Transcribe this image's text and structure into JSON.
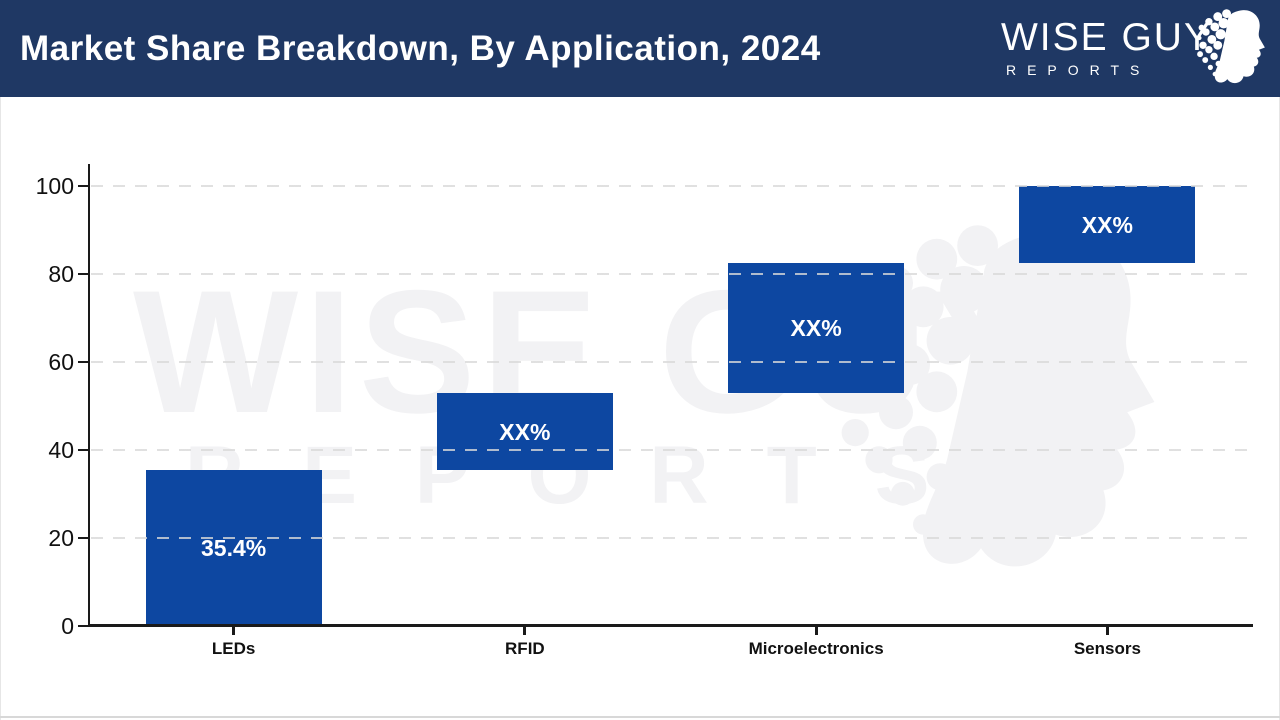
{
  "header": {
    "title": "Market Share Breakdown, By Application, 2024",
    "logo": {
      "line1": "WISE GUY",
      "line2": "REPORTS"
    }
  },
  "watermark": {
    "line1": "WISE GUY",
    "line2": "REPORTS"
  },
  "colors": {
    "header_bg": "#1F3864",
    "bar": "#0D47A1",
    "axis": "#1a1a1a",
    "grid": "#d9d9d9",
    "watermark": "#f2f2f4",
    "label_on_bar": "#ffffff"
  },
  "chart_data": {
    "type": "bar",
    "variant": "waterfall",
    "title": "Market Share Breakdown, By Application, 2024",
    "categories": [
      "LEDs",
      "RFID",
      "Microelectronics",
      "Sensors"
    ],
    "segments": [
      {
        "category": "LEDs",
        "start": 0,
        "end": 35.4,
        "label": "35.4%"
      },
      {
        "category": "RFID",
        "start": 35.4,
        "end": 53,
        "label": "XX%"
      },
      {
        "category": "Microelectronics",
        "start": 53,
        "end": 82.5,
        "label": "XX%"
      },
      {
        "category": "Sensors",
        "start": 82.5,
        "end": 100,
        "label": "XX%"
      }
    ],
    "ylim": [
      0,
      100
    ],
    "yticks": [
      0,
      20,
      40,
      60,
      80,
      100
    ],
    "xlabel": "",
    "ylabel": "",
    "grid": "horizontal-dashed",
    "legend": "none",
    "bar_color": "#0D47A1"
  }
}
